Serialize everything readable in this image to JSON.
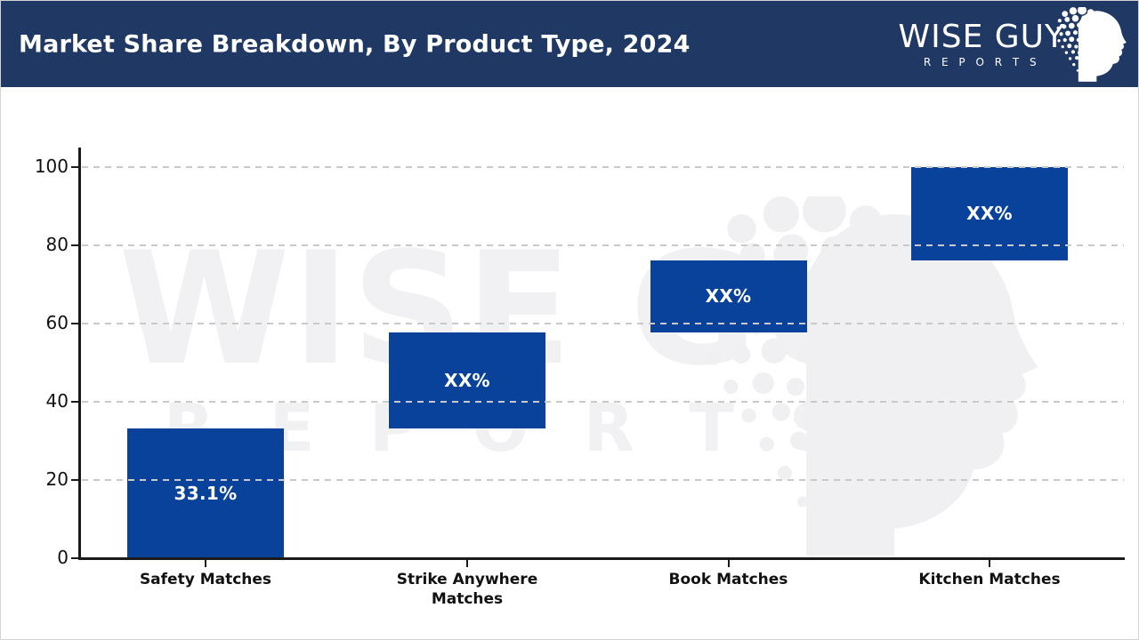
{
  "header": {
    "title": "Market Share Breakdown, By Product Type, 2024",
    "logo": {
      "name": "WISE GUY",
      "sub": "R E P O R T S"
    }
  },
  "watermark": {
    "line1": "WISE GUY",
    "line2": "R E P O R T S"
  },
  "chart_data": {
    "type": "bar",
    "subtype": "waterfall",
    "title": "Market Share Breakdown, By Product Type, 2024",
    "categories": [
      "Safety Matches",
      "Strike Anywhere Matches",
      "Book Matches",
      "Kitchen Matches"
    ],
    "bars": [
      {
        "category": "Safety Matches",
        "start": 0,
        "end": 33.1,
        "label": "33.1%"
      },
      {
        "category": "Strike Anywhere Matches",
        "start": 33.1,
        "end": 57.8,
        "label": "XX%"
      },
      {
        "category": "Book Matches",
        "start": 57.8,
        "end": 76.2,
        "label": "XX%"
      },
      {
        "category": "Kitchen Matches",
        "start": 76.2,
        "end": 100,
        "label": "XX%"
      }
    ],
    "yticks": [
      0,
      20,
      40,
      60,
      80,
      100
    ],
    "ylim": [
      0,
      105
    ],
    "xlabel": "",
    "ylabel": "",
    "grid": "horizontal-dashed",
    "legend": "none",
    "bar_color": "#08429A",
    "bar_label_color": "#ffffff"
  },
  "colors": {
    "header_bg": "#1F3864",
    "bar": "#08429A",
    "grid": "#c9c9c9",
    "axis": "#1a1a1a",
    "watermark": "#f1f1f3",
    "page_border": "#d3d3d3"
  }
}
